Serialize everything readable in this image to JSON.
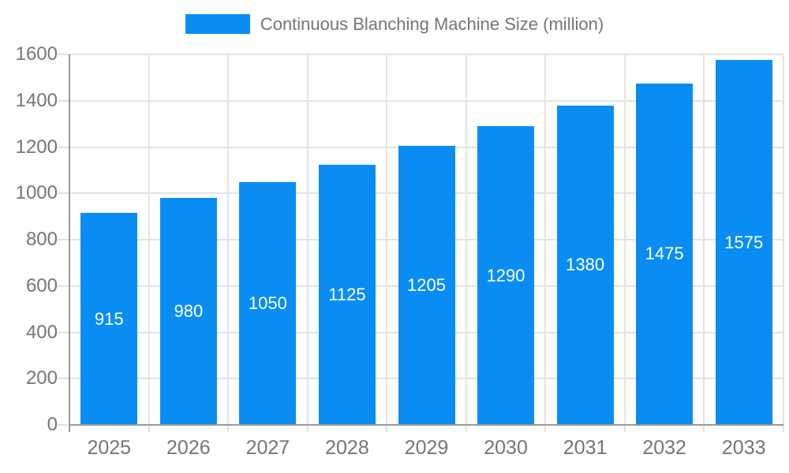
{
  "chart_data": {
    "type": "bar",
    "title": "Continuous Blanching Machine Size (million)",
    "categories": [
      "2025",
      "2026",
      "2027",
      "2028",
      "2029",
      "2030",
      "2031",
      "2032",
      "2033"
    ],
    "series": [
      {
        "name": "Continuous Blanching Machine Size (million)",
        "values": [
          915,
          980,
          1050,
          1125,
          1205,
          1290,
          1380,
          1475,
          1575
        ]
      }
    ],
    "xlabel": "",
    "ylabel": "",
    "ylim": [
      0,
      1600
    ],
    "yticks": [
      0,
      200,
      400,
      600,
      800,
      1000,
      1200,
      1400,
      1600
    ],
    "grid": "on",
    "legend_position": "top-center",
    "colors": {
      "bar": "#0a8df2",
      "grid": "#e3e3e3",
      "axis": "#999999",
      "tick": "#e0e0e0",
      "text": "#757575",
      "bar_label": "#ffffff",
      "background": "#ffffff"
    }
  }
}
